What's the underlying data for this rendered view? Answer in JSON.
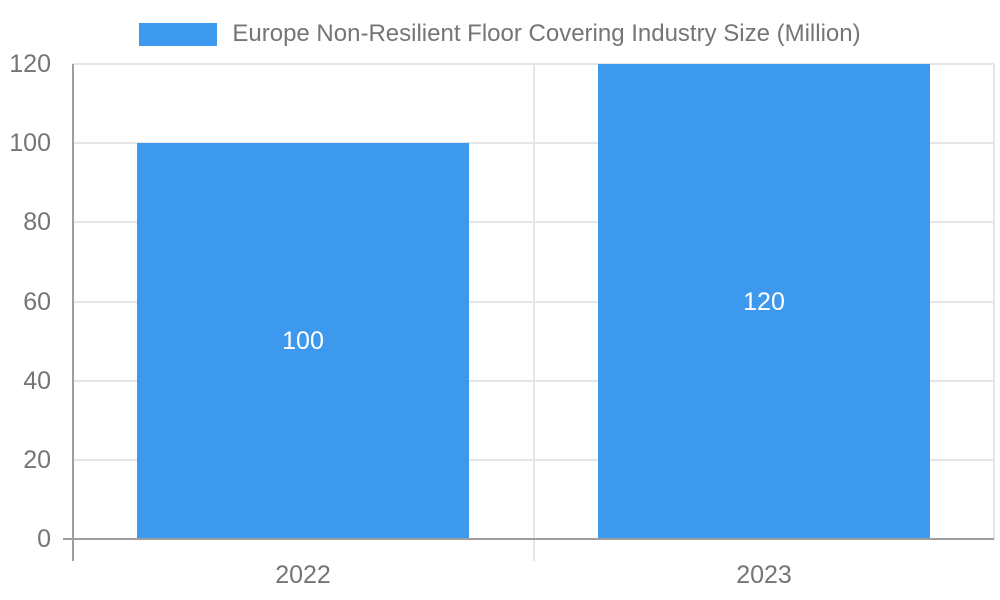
{
  "chart_data": {
    "type": "bar",
    "title": "Europe Non-Resilient Floor Covering Industry Size (Million)",
    "categories": [
      "2022",
      "2023"
    ],
    "values": [
      100,
      120
    ],
    "bar_labels": [
      "100",
      "120"
    ],
    "xlabel": "",
    "ylabel": "",
    "ylim": [
      0,
      120
    ],
    "yticks": [
      0,
      20,
      40,
      60,
      80,
      100,
      120
    ],
    "grid": true,
    "legend_position": "top-center",
    "colors": {
      "bar": "#3D99EE",
      "grid": "#E6E6E6",
      "axis": "#9E9E9E",
      "separator": "#E6E6E6",
      "text": "#757575",
      "bar_label_text": "#FFFFFF",
      "background": "#FFFFFF"
    }
  }
}
